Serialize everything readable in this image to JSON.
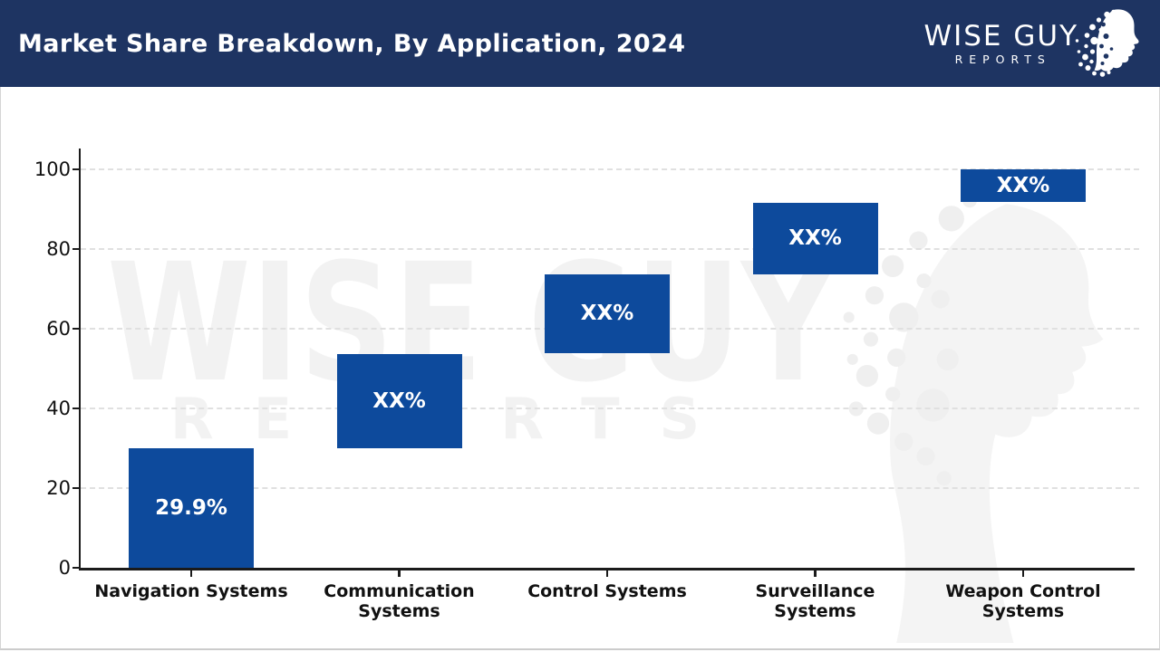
{
  "header": {
    "title": "Market Share Breakdown, By Application, 2024",
    "brand": {
      "name": "WISE GUY",
      "tagline": "REPORTS"
    }
  },
  "watermark": {
    "name": "WISE GUY",
    "tagline": "REPORTS"
  },
  "colors": {
    "header_bg": "#1e3462",
    "bar": "#0d4a9c",
    "axis": "#1b1b1b",
    "grid": "#e0e0e0",
    "tick_label": "#111111",
    "value_label": "#ffffff",
    "watermark": "#f2f2f2"
  },
  "chart_data": {
    "type": "bar",
    "subtype": "waterfall",
    "title": "Market Share Breakdown, By Application, 2024",
    "xlabel": "",
    "ylabel": "",
    "ylim": [
      0,
      105
    ],
    "yticks": [
      0,
      20,
      40,
      60,
      80,
      100
    ],
    "grid": true,
    "legend": "none",
    "categories": [
      "Navigation Systems",
      "Communication\nSystems",
      "Control Systems",
      "Surveillance\nSystems",
      "Weapon Control\nSystems"
    ],
    "bars": [
      {
        "category": "Navigation Systems",
        "base": 0,
        "top": 29.9,
        "label": "29.9%"
      },
      {
        "category": "Communication\nSystems",
        "base": 30,
        "top": 53.6,
        "label": "XX%"
      },
      {
        "category": "Control Systems",
        "base": 53.9,
        "top": 73.7,
        "label": "XX%"
      },
      {
        "category": "Surveillance\nSystems",
        "base": 73.7,
        "top": 91.6,
        "label": "XX%"
      },
      {
        "category": "Weapon Control\nSystems",
        "base": 91.8,
        "top": 100,
        "label": "XX%"
      }
    ]
  }
}
